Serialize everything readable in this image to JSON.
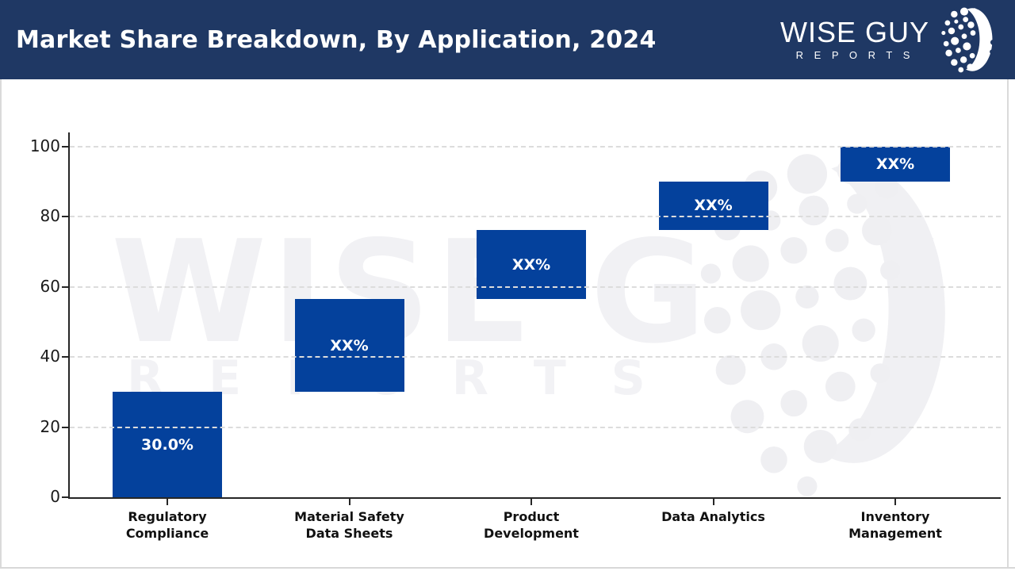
{
  "header": {
    "title": "Market Share Breakdown, By Application, 2024",
    "bg_color": "#1f3864",
    "logo": {
      "brand_line1": "WISE GUY",
      "brand_line2": "R E P O R T S"
    }
  },
  "watermark": {
    "line1": "WISE GUY",
    "line2": "R E P O R T S"
  },
  "chart_data": {
    "type": "bar",
    "subtype": "waterfall",
    "title": "Market Share Breakdown, By Application, 2024",
    "categories": [
      "Regulatory Compliance",
      "Material Safety Data Sheets",
      "Product Development",
      "Data Analytics",
      "Inventory Management"
    ],
    "category_lines": [
      [
        "Regulatory",
        "Compliance"
      ],
      [
        "Material Safety",
        "Data Sheets"
      ],
      [
        "Product",
        "Development"
      ],
      [
        "Data Analytics"
      ],
      [
        "Inventory",
        "Management"
      ]
    ],
    "segments": [
      {
        "category": "Regulatory Compliance",
        "start": 0,
        "end": 30,
        "label": "30.0%"
      },
      {
        "category": "Material Safety Data Sheets",
        "start": 30,
        "end": 56.5,
        "label": "XX%"
      },
      {
        "category": "Product Development",
        "start": 56.5,
        "end": 76.3,
        "label": "XX%"
      },
      {
        "category": "Data Analytics",
        "start": 76.3,
        "end": 90,
        "label": "XX%"
      },
      {
        "category": "Inventory Management",
        "start": 90,
        "end": 100,
        "label": "XX%"
      }
    ],
    "segment_sizes": [
      30,
      26.5,
      19.8,
      13.7,
      10
    ],
    "bar_color": "#04419c",
    "label_color": "#ffffff",
    "yticks": [
      0,
      20,
      40,
      60,
      80,
      100
    ],
    "ylim": [
      0,
      104
    ],
    "xlabel": "",
    "ylabel": "",
    "grid": "horizontal-dashed",
    "legend": "none"
  }
}
